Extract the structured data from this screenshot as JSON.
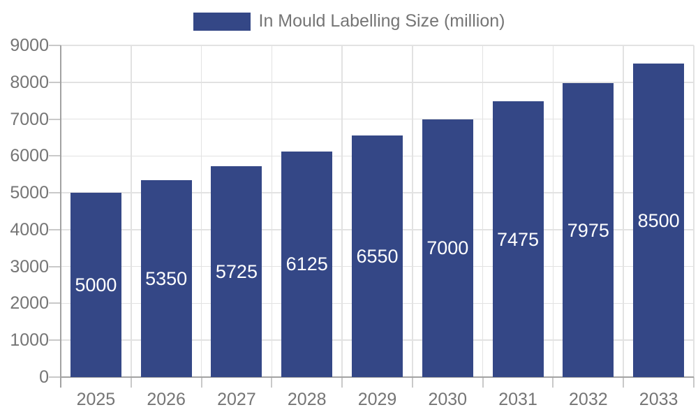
{
  "legend": {
    "label": "In Mould Labelling Size (million)"
  },
  "chart_data": {
    "type": "bar",
    "title": "In Mould Labelling Size (million)",
    "categories": [
      "2025",
      "2026",
      "2027",
      "2028",
      "2029",
      "2030",
      "2031",
      "2032",
      "2033"
    ],
    "series": [
      {
        "name": "In Mould Labelling Size (million)",
        "values": [
          5000,
          5350,
          5725,
          6125,
          6550,
          7000,
          7475,
          7975,
          8500
        ]
      }
    ],
    "value_labels_shown": true,
    "xlabel": "",
    "ylabel": "",
    "ylim": [
      0,
      9000
    ],
    "ytick_step": 1000,
    "grid": true,
    "legend_position": "top",
    "colors": {
      "bar": "#344786",
      "value_label": "#ffffff",
      "axis_label": "#757575",
      "gridline": "#e2e2e2",
      "axis_line": "#a2a2a2",
      "tick": "#c9c9c9"
    }
  }
}
